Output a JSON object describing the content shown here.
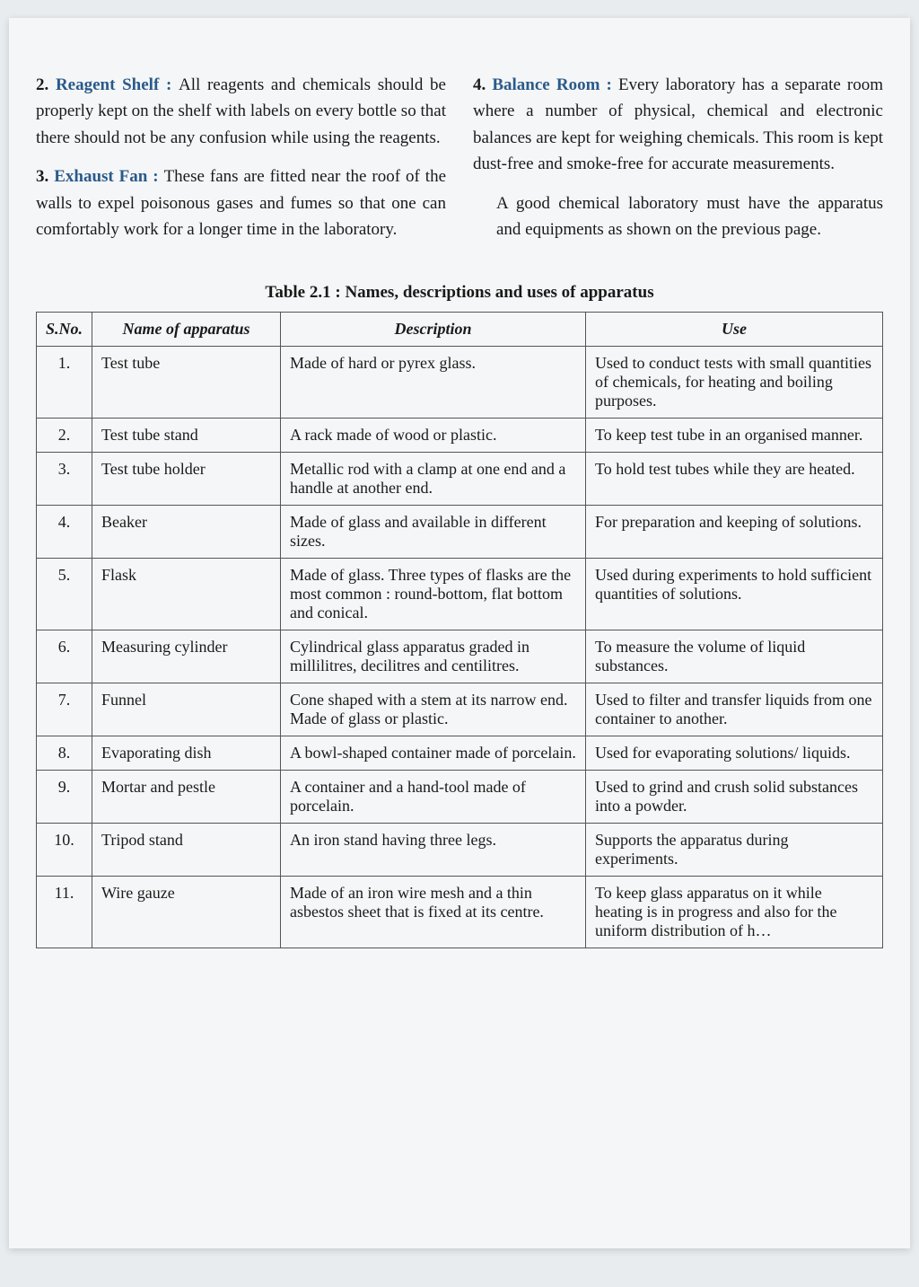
{
  "leftColumn": {
    "items": [
      {
        "num": "2.",
        "heading": "Reagent Shelf : ",
        "body": "All reagents and chemicals should be properly kept on the shelf with labels on every bottle so that there should not be any confusion while using the reagents."
      },
      {
        "num": "3.",
        "heading": "Exhaust Fan : ",
        "body": "These fans are fitted near the roof of the walls to expel poisonous gases and fumes so that one can comfortably work for a longer time in the laboratory."
      }
    ]
  },
  "rightColumn": {
    "items": [
      {
        "num": "4.",
        "heading": "Balance Room : ",
        "body": "Every laboratory has a separate room where a number of physical, chemical and electronic balances are kept for weighing chemicals. This room is kept dust-free and smoke-free for accurate measurements."
      }
    ],
    "footer": "A good chemical laboratory must have the apparatus and equipments as shown on the previous page."
  },
  "table": {
    "title": "Table 2.1 : Names, descriptions and uses of apparatus",
    "headers": {
      "sno": "S.No.",
      "name": "Name of apparatus",
      "desc": "Description",
      "use": "Use"
    },
    "rows": [
      {
        "sno": "1.",
        "name": "Test tube",
        "desc": "Made of hard or pyrex glass.",
        "use": "Used to conduct tests with small quantities of chemicals, for heating and boiling purposes."
      },
      {
        "sno": "2.",
        "name": "Test tube stand",
        "desc": "A rack made of wood or plastic.",
        "use": "To keep test tube in an organised manner."
      },
      {
        "sno": "3.",
        "name": "Test tube holder",
        "desc": "Metallic rod with a clamp at one end and a handle at another end.",
        "use": "To hold test tubes while they are heated."
      },
      {
        "sno": "4.",
        "name": "Beaker",
        "desc": "Made of glass and available in different sizes.",
        "use": "For preparation and keeping of solutions."
      },
      {
        "sno": "5.",
        "name": "Flask",
        "desc": "Made of glass. Three types of flasks are the most common : round-bottom, flat bottom and conical.",
        "use": "Used during experiments to hold sufficient quantities of solutions."
      },
      {
        "sno": "6.",
        "name": "Measuring cylinder",
        "desc": "Cylindrical glass apparatus graded in millilitres, decilitres and centilitres.",
        "use": "To measure the volume of liquid substances."
      },
      {
        "sno": "7.",
        "name": "Funnel",
        "desc": "Cone shaped with a stem at its narrow end. Made of glass or plastic.",
        "use": "Used to filter and transfer liquids from one container to another."
      },
      {
        "sno": "8.",
        "name": "Evaporating dish",
        "desc": "A bowl-shaped container made of porcelain.",
        "use": "Used for evaporating solutions/ liquids."
      },
      {
        "sno": "9.",
        "name": "Mortar and pestle",
        "desc": "A container and a hand-tool made of porcelain.",
        "use": "Used to grind and crush solid substances into a powder."
      },
      {
        "sno": "10.",
        "name": "Tripod stand",
        "desc": "An iron stand having three legs.",
        "use": "Supports the apparatus during experiments."
      },
      {
        "sno": "11.",
        "name": "Wire gauze",
        "desc": "Made of an iron wire mesh and a thin asbestos sheet that is fixed at its centre.",
        "use": "To keep glass apparatus on it while heating is in progress and also for the uniform distribution of h…"
      }
    ]
  },
  "colors": {
    "heading": "#2a5a8a",
    "text": "#1a1a1a",
    "border": "#555555",
    "page_bg": "#f5f6f7",
    "outer_bg": "#e8ecef"
  },
  "typography": {
    "body_fontsize": 19,
    "table_fontsize": 18,
    "font_family": "Georgia, Times New Roman, serif"
  }
}
